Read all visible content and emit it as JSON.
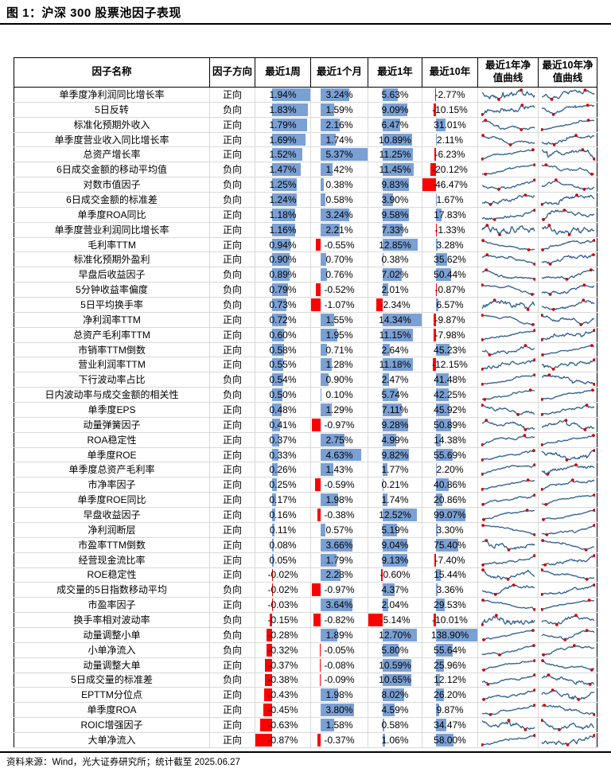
{
  "title": "图 1：沪深 300 股票池因子表现",
  "source_note": "资料来源：Wind，光大证券研究所；统计截至 2025.06.27",
  "colors": {
    "bar_positive": "#7AA0D4",
    "bar_negative": "#FF0000",
    "sparkline": "#31618F",
    "sparkline_marker": "#CE0000",
    "grid_line": "#d9d9d9",
    "border": "#000000"
  },
  "chart_data": {
    "type": "table",
    "title": "沪深300股票池因子表现",
    "columns": [
      "因子名称",
      "因子方向",
      "最近1周",
      "最近1个月",
      "最近1年",
      "最近10年",
      "最近1年净值曲线",
      "最近10年净值曲线"
    ],
    "value_columns": [
      "最近1周",
      "最近1个月",
      "最近1年",
      "最近10年"
    ],
    "sparkline_columns": [
      "最近1年净值曲线",
      "最近10年净值曲线"
    ],
    "bar_style": "excel-data-bars, automatic axis per column, blue positive, red negative",
    "rows": [
      [
        "单季度净利润同比增长率",
        "正向",
        "1.94%",
        "3.24%",
        "5.63%",
        "-2.77%"
      ],
      [
        "5日反转",
        "负向",
        "1.83%",
        "1.59%",
        "9.09%",
        "-10.15%"
      ],
      [
        "标准化预期外收入",
        "正向",
        "1.79%",
        "2.16%",
        "6.47%",
        "31.01%"
      ],
      [
        "单季度营业收入同比增长率",
        "正向",
        "1.69%",
        "1.74%",
        "10.89%",
        "2.11%"
      ],
      [
        "总资产增长率",
        "正向",
        "1.52%",
        "5.37%",
        "11.25%",
        "-6.23%"
      ],
      [
        "6日成交金额的移动平均值",
        "负向",
        "1.47%",
        "1.42%",
        "11.45%",
        "-20.12%"
      ],
      [
        "对数市值因子",
        "负向",
        "1.25%",
        "0.38%",
        "9.83%",
        "-46.47%"
      ],
      [
        "6日成交金额的标准差",
        "负向",
        "1.24%",
        "0.58%",
        "3.90%",
        "1.67%"
      ],
      [
        "单季度ROA同比",
        "正向",
        "1.18%",
        "3.24%",
        "9.58%",
        "17.83%"
      ],
      [
        "单季度营业利润同比增长率",
        "正向",
        "1.16%",
        "2.21%",
        "7.33%",
        "-1.33%"
      ],
      [
        "毛利率TTM",
        "正向",
        "0.94%",
        "-0.55%",
        "12.85%",
        "3.28%"
      ],
      [
        "标准化预期外盈利",
        "正向",
        "0.90%",
        "0.70%",
        "0.38%",
        "35.62%"
      ],
      [
        "早盘后收益因子",
        "负向",
        "0.89%",
        "0.76%",
        "7.02%",
        "50.44%"
      ],
      [
        "5分钟收益率偏度",
        "负向",
        "0.79%",
        "-0.52%",
        "2.01%",
        "-0.87%"
      ],
      [
        "5日平均换手率",
        "负向",
        "0.73%",
        "-1.07%",
        "-2.34%",
        "6.57%"
      ],
      [
        "净利润率TTM",
        "正向",
        "0.72%",
        "1.55%",
        "14.34%",
        "-9.87%"
      ],
      [
        "总资产毛利率TTM",
        "正向",
        "0.60%",
        "1.95%",
        "11.15%",
        "-7.98%"
      ],
      [
        "市销率TTM倒数",
        "正向",
        "0.58%",
        "0.71%",
        "2.64%",
        "45.23%"
      ],
      [
        "营业利润率TTM",
        "正向",
        "0.55%",
        "1.28%",
        "11.18%",
        "-12.15%"
      ],
      [
        "下行波动率占比",
        "负向",
        "0.54%",
        "0.90%",
        "2.47%",
        "41.48%"
      ],
      [
        "日内波动率与成交金额的相关性",
        "负向",
        "0.50%",
        "0.10%",
        "5.74%",
        "42.25%"
      ],
      [
        "单季度EPS",
        "正向",
        "0.48%",
        "1.29%",
        "7.11%",
        "45.92%"
      ],
      [
        "动量弹簧因子",
        "正向",
        "0.41%",
        "-0.97%",
        "9.28%",
        "50.89%"
      ],
      [
        "ROA稳定性",
        "正向",
        "0.37%",
        "2.75%",
        "4.99%",
        "14.38%"
      ],
      [
        "单季度ROE",
        "正向",
        "0.33%",
        "4.63%",
        "9.82%",
        "55.69%"
      ],
      [
        "单季度总资产毛利率",
        "正向",
        "0.26%",
        "1.43%",
        "1.77%",
        "2.20%"
      ],
      [
        "市净率因子",
        "正向",
        "0.25%",
        "-0.59%",
        "0.21%",
        "40.86%"
      ],
      [
        "单季度ROE同比",
        "正向",
        "0.17%",
        "1.98%",
        "1.74%",
        "20.86%"
      ],
      [
        "早盘收益因子",
        "正向",
        "0.16%",
        "-0.38%",
        "12.52%",
        "99.07%"
      ],
      [
        "净利润断层",
        "正向",
        "0.11%",
        "0.57%",
        "5.19%",
        "3.30%"
      ],
      [
        "市盈率TTM倒数",
        "正向",
        "0.08%",
        "3.66%",
        "9.04%",
        "75.40%"
      ],
      [
        "经营现金流比率",
        "正向",
        "0.05%",
        "1.79%",
        "9.13%",
        "-7.40%"
      ],
      [
        "ROE稳定性",
        "正向",
        "-0.02%",
        "2.28%",
        "-0.60%",
        "15.44%"
      ],
      [
        "成交量的5日指数移动平均",
        "负向",
        "-0.02%",
        "-0.97%",
        "4.37%",
        "3.36%"
      ],
      [
        "市盈率因子",
        "正向",
        "-0.03%",
        "3.64%",
        "2.04%",
        "29.53%"
      ],
      [
        "换手率相对波动率",
        "负向",
        "-0.15%",
        "-0.82%",
        "-5.14%",
        "-10.01%"
      ],
      [
        "动量调整小单",
        "负向",
        "-0.28%",
        "1.89%",
        "12.70%",
        "138.90%"
      ],
      [
        "小单净流入",
        "负向",
        "-0.32%",
        "-0.05%",
        "5.80%",
        "55.64%"
      ],
      [
        "动量调整大单",
        "正向",
        "-0.37%",
        "-0.08%",
        "10.59%",
        "25.96%"
      ],
      [
        "5日成交量的标准差",
        "负向",
        "-0.38%",
        "-0.09%",
        "10.65%",
        "12.12%"
      ],
      [
        "EPTTM分位点",
        "正向",
        "-0.43%",
        "1.98%",
        "8.02%",
        "26.20%"
      ],
      [
        "单季度ROA",
        "正向",
        "-0.45%",
        "3.80%",
        "4.59%",
        "9.87%"
      ],
      [
        "ROIC增强因子",
        "正向",
        "-0.63%",
        "1.58%",
        "0.58%",
        "34.47%"
      ],
      [
        "大单净流入",
        "正向",
        "-0.87%",
        "-0.37%",
        "1.06%",
        "58.00%"
      ]
    ]
  }
}
